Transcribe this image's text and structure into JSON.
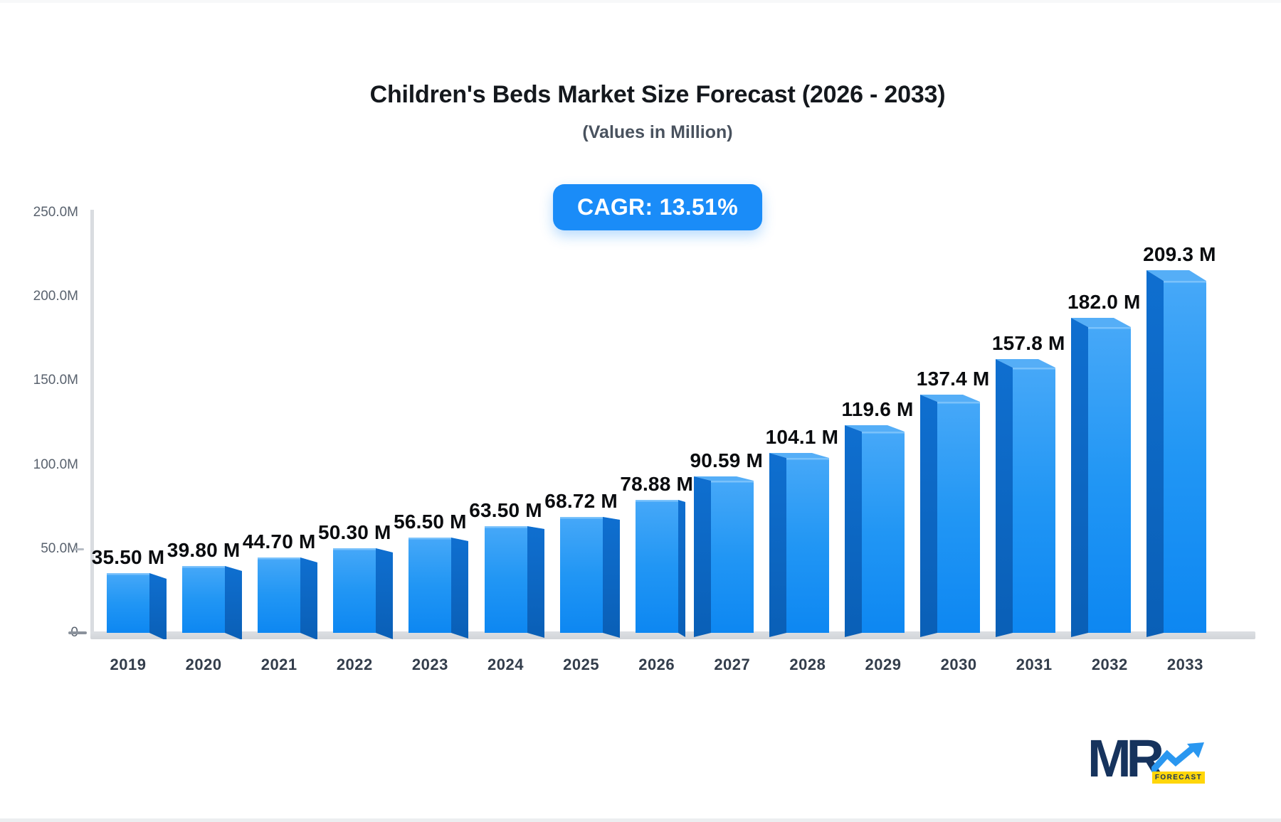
{
  "header": {
    "title": "Children's Beds Market Size Forecast (2026 - 2033)",
    "subtitle": "(Values in Million)",
    "cagr_badge": "CAGR: 13.51%"
  },
  "y_axis": {
    "tick_labels": [
      "250.0M",
      "200.0M",
      "150.0M",
      "100.0M",
      "50.0M",
      "0"
    ],
    "tick_values": [
      250,
      200,
      150,
      100,
      50,
      0
    ]
  },
  "chart_data": {
    "type": "bar",
    "title": "Children's Beds Market Size Forecast (2026 - 2033)",
    "subtitle": "(Values in Million)",
    "categories": [
      "2019",
      "2020",
      "2021",
      "2022",
      "2023",
      "2024",
      "2025",
      "2026",
      "2027",
      "2028",
      "2029",
      "2030",
      "2031",
      "2032",
      "2033"
    ],
    "values": [
      35.5,
      39.8,
      44.7,
      50.3,
      56.5,
      63.5,
      68.72,
      78.88,
      90.59,
      104.1,
      119.6,
      137.4,
      157.8,
      182.0,
      209.3
    ],
    "value_labels": [
      "35.50 M",
      "39.80 M",
      "44.70 M",
      "50.30 M",
      "56.50 M",
      "63.50 M",
      "68.72 M",
      "78.88 M",
      "90.59 M",
      "104.1 M",
      "119.6 M",
      "137.4 M",
      "157.8 M",
      "182.0 M",
      "209.3 M"
    ],
    "cagr": "13.51%",
    "ylim": [
      0,
      250
    ],
    "grid": false,
    "legend": false,
    "bar_style": "3d",
    "colors": {
      "bar_front_top": "#46a8f8",
      "bar_front_mid": "#2196f4",
      "bar_front_bottom": "#0d87f2",
      "bar_side_top": "#0f6fd0",
      "bar_side_bottom": "#0a5fb6",
      "bar_top_face": "#55aef7",
      "axis": "#d9dce0",
      "tick_text": "#59626e",
      "badge": "#1a8cf8"
    }
  },
  "logo": {
    "text": "MR",
    "banner": "FORECAST",
    "navy": "#16335d",
    "arrow_blue": "#2a97f0",
    "yellow": "#ffd60a"
  }
}
